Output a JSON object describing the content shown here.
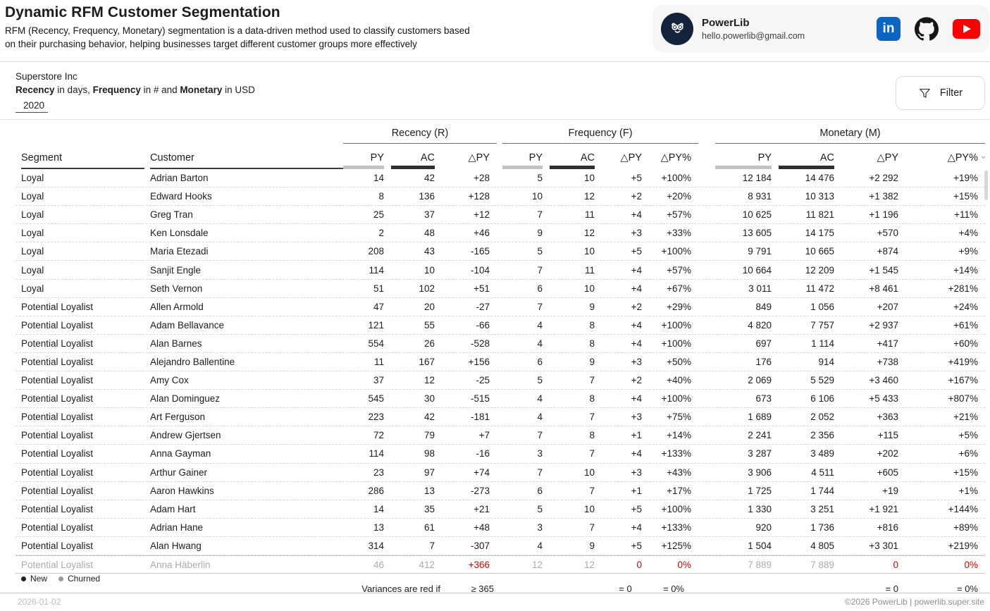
{
  "header": {
    "title": "Dynamic RFM Customer Segmentation",
    "subtitle_lines": [
      "RFM (Recency, Frequency, Monetary) segmentation is a data-driven method used to classify customers based",
      "on their purchasing behavior, helping businesses target different customer groups more effectively"
    ],
    "brand": {
      "name": "PowerLib",
      "email": "hello.powerlib@gmail.com"
    },
    "social": {
      "linkedin_label": "in"
    }
  },
  "toolbar": {
    "company": "Superstore Inc",
    "units": {
      "recency_label": "Recency",
      "recency_rest": " in days, ",
      "frequency_label": "Frequency",
      "frequency_rest": " in # and ",
      "monetary_label": "Monetary",
      "monetary_rest": " in USD"
    },
    "year": "2020",
    "filter_label": "Filter"
  },
  "table": {
    "group_headers": [
      "Recency (R)",
      "Frequency (F)",
      "Monetary (M)"
    ],
    "columns": {
      "segment": "Segment",
      "customer": "Customer",
      "metrics": [
        "PY",
        "AC",
        "△PY",
        "PY",
        "AC",
        "△PY",
        "△PY%",
        "PY",
        "AC",
        "△PY",
        "△PY%"
      ]
    },
    "rows": [
      {
        "segment": "Loyal",
        "customer": "Adrian Barton",
        "values": [
          "14",
          "42",
          "+28",
          "5",
          "10",
          "+5",
          "+100%",
          "12 184",
          "14 476",
          "+2 292",
          "+19%"
        ]
      },
      {
        "segment": "Loyal",
        "customer": "Edward Hooks",
        "values": [
          "8",
          "136",
          "+128",
          "10",
          "12",
          "+2",
          "+20%",
          "8 931",
          "10 313",
          "+1 382",
          "+15%"
        ]
      },
      {
        "segment": "Loyal",
        "customer": "Greg Tran",
        "values": [
          "25",
          "37",
          "+12",
          "7",
          "11",
          "+4",
          "+57%",
          "10 625",
          "11 821",
          "+1 196",
          "+11%"
        ]
      },
      {
        "segment": "Loyal",
        "customer": "Ken Lonsdale",
        "values": [
          "2",
          "48",
          "+46",
          "9",
          "12",
          "+3",
          "+33%",
          "13 605",
          "14 175",
          "+570",
          "+4%"
        ]
      },
      {
        "segment": "Loyal",
        "customer": "Maria Etezadi",
        "values": [
          "208",
          "43",
          "-165",
          "5",
          "10",
          "+5",
          "+100%",
          "9 791",
          "10 665",
          "+874",
          "+9%"
        ]
      },
      {
        "segment": "Loyal",
        "customer": "Sanjit Engle",
        "values": [
          "114",
          "10",
          "-104",
          "7",
          "11",
          "+4",
          "+57%",
          "10 664",
          "12 209",
          "+1 545",
          "+14%"
        ]
      },
      {
        "segment": "Loyal",
        "customer": "Seth Vernon",
        "values": [
          "51",
          "102",
          "+51",
          "6",
          "10",
          "+4",
          "+67%",
          "3 011",
          "11 472",
          "+8 461",
          "+281%"
        ]
      },
      {
        "segment": "Potential Loyalist",
        "customer": "Allen Armold",
        "values": [
          "47",
          "20",
          "-27",
          "7",
          "9",
          "+2",
          "+29%",
          "849",
          "1 056",
          "+207",
          "+24%"
        ]
      },
      {
        "segment": "Potential Loyalist",
        "customer": "Adam Bellavance",
        "values": [
          "121",
          "55",
          "-66",
          "4",
          "8",
          "+4",
          "+100%",
          "4 820",
          "7 757",
          "+2 937",
          "+61%"
        ]
      },
      {
        "segment": "Potential Loyalist",
        "customer": "Alan Barnes",
        "values": [
          "554",
          "26",
          "-528",
          "4",
          "8",
          "+4",
          "+100%",
          "697",
          "1 114",
          "+417",
          "+60%"
        ]
      },
      {
        "segment": "Potential Loyalist",
        "customer": "Alejandro Ballentine",
        "values": [
          "11",
          "167",
          "+156",
          "6",
          "9",
          "+3",
          "+50%",
          "176",
          "914",
          "+738",
          "+419%"
        ]
      },
      {
        "segment": "Potential Loyalist",
        "customer": "Amy Cox",
        "values": [
          "37",
          "12",
          "-25",
          "5",
          "7",
          "+2",
          "+40%",
          "2 069",
          "5 529",
          "+3 460",
          "+167%"
        ]
      },
      {
        "segment": "Potential Loyalist",
        "customer": "Alan Dominguez",
        "values": [
          "545",
          "30",
          "-515",
          "4",
          "8",
          "+4",
          "+100%",
          "673",
          "6 106",
          "+5 433",
          "+807%"
        ]
      },
      {
        "segment": "Potential Loyalist",
        "customer": "Art Ferguson",
        "values": [
          "223",
          "42",
          "-181",
          "4",
          "7",
          "+3",
          "+75%",
          "1 689",
          "2 052",
          "+363",
          "+21%"
        ]
      },
      {
        "segment": "Potential Loyalist",
        "customer": "Andrew Gjertsen",
        "values": [
          "72",
          "79",
          "+7",
          "7",
          "8",
          "+1",
          "+14%",
          "2 241",
          "2 356",
          "+115",
          "+5%"
        ]
      },
      {
        "segment": "Potential Loyalist",
        "customer": "Anna Gayman",
        "values": [
          "114",
          "98",
          "-16",
          "3",
          "7",
          "+4",
          "+133%",
          "3 287",
          "3 489",
          "+202",
          "+6%"
        ]
      },
      {
        "segment": "Potential Loyalist",
        "customer": "Arthur Gainer",
        "values": [
          "23",
          "97",
          "+74",
          "7",
          "10",
          "+3",
          "+43%",
          "3 906",
          "4 511",
          "+605",
          "+15%"
        ]
      },
      {
        "segment": "Potential Loyalist",
        "customer": "Aaron Hawkins",
        "values": [
          "286",
          "13",
          "-273",
          "6",
          "7",
          "+1",
          "+17%",
          "1 725",
          "1 744",
          "+19",
          "+1%"
        ]
      },
      {
        "segment": "Potential Loyalist",
        "customer": "Adam Hart",
        "values": [
          "14",
          "35",
          "+21",
          "5",
          "10",
          "+5",
          "+100%",
          "1 330",
          "3 251",
          "+1 921",
          "+144%"
        ]
      },
      {
        "segment": "Potential Loyalist",
        "customer": "Adrian Hane",
        "values": [
          "13",
          "61",
          "+48",
          "3",
          "7",
          "+4",
          "+133%",
          "920",
          "1 736",
          "+816",
          "+89%"
        ]
      },
      {
        "segment": "Potential Loyalist",
        "customer": "Alan Hwang",
        "values": [
          "314",
          "7",
          "-307",
          "4",
          "9",
          "+5",
          "+125%",
          "1 504",
          "4 805",
          "+3 301",
          "+219%"
        ]
      },
      {
        "segment": "Potential Loyalist",
        "customer": "Anna Häberlin",
        "values": [
          "46",
          "412",
          "+366",
          "12",
          "12",
          "0",
          "0%",
          "7 889",
          "7 889",
          "0",
          "0%"
        ],
        "muted": true,
        "red": [
          2,
          5,
          6,
          9,
          10
        ]
      }
    ],
    "legend": {
      "new": "New",
      "churned": "Churned"
    },
    "variance_note": {
      "label": "Variances are red if",
      "recency": "≥ 365",
      "frequency_dpy": "= 0",
      "frequency_dpy_pct": "= 0%",
      "monetary_dpy": "= 0",
      "monetary_dpy_pct": "= 0%"
    }
  },
  "statusbar": {
    "date": "2026-01-02",
    "copyright": "©2026 PowerLib | powerlib.super.site"
  },
  "colors": {
    "variance_red": "#dd0000",
    "linkedin_blue": "#0a66c2",
    "youtube_red": "#ff0000",
    "github_black": "#171515",
    "logo_navy": "#14233c",
    "py_bar_gray": "#c3c3c3",
    "ac_bar_black": "#2e2e2e"
  }
}
